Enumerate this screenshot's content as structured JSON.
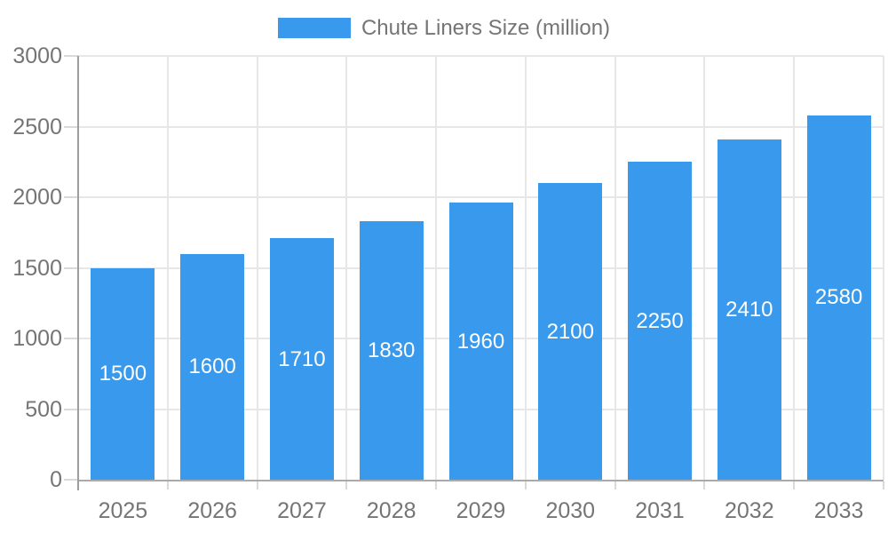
{
  "legend": {
    "label": "Chute Liners Size (million)"
  },
  "colors": {
    "bar": "#3999EC",
    "grid": "#E7E7E7",
    "tick": "#D9D9D9",
    "axis_line": "#9E9E9E",
    "baseline": "#AAAAAA",
    "axis_text": "#757575",
    "value_label_text": "#FFFFFF",
    "background": "#FFFFFF"
  },
  "chart_data": {
    "type": "bar",
    "title": "",
    "categories": [
      "2025",
      "2026",
      "2027",
      "2028",
      "2029",
      "2030",
      "2031",
      "2032",
      "2033"
    ],
    "series": [
      {
        "name": "Chute Liners Size (million)",
        "values": [
          1500,
          1600,
          1710,
          1830,
          1960,
          2100,
          2250,
          2410,
          2580
        ]
      }
    ],
    "value_labels": [
      "1500",
      "1600",
      "1710",
      "1830",
      "1960",
      "2100",
      "2250",
      "2410",
      "2580"
    ],
    "value_label_position": "inside-center",
    "xlabel": "",
    "ylabel": "",
    "ylim": [
      0,
      3000
    ],
    "y_ticks": [
      0,
      500,
      1000,
      1500,
      2000,
      2500,
      3000
    ],
    "grid": true,
    "legend_position": "top"
  }
}
